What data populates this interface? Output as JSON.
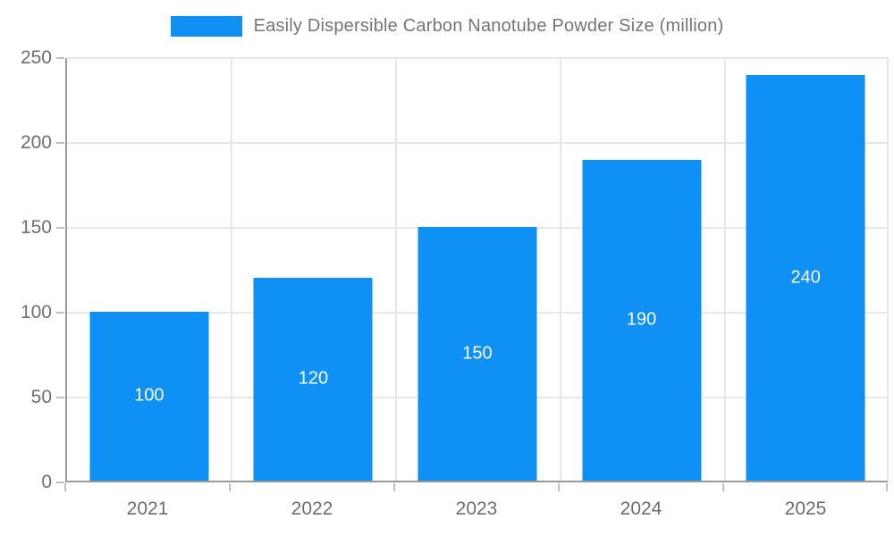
{
  "legend": {
    "label": "Easily Dispersible Carbon Nanotube Powder Size (million)"
  },
  "colors": {
    "bar": "#0E90F5",
    "axis_line": "#999999",
    "gridline": "#E7E7E7",
    "tick": "#BFBFBF",
    "axis_text": "#6E6E6E",
    "legend_text": "#757575",
    "bar_label_text": "#FFFFFF",
    "background": "#FFFFFF"
  },
  "chart_data": {
    "type": "bar",
    "title": "Easily Dispersible Carbon Nanotube Powder Size (million)",
    "categories": [
      "2021",
      "2022",
      "2023",
      "2024",
      "2025"
    ],
    "values": [
      100,
      120,
      150,
      190,
      240
    ],
    "xlabel": "",
    "ylabel": "",
    "ylim": [
      0,
      250
    ],
    "yticks": [
      250,
      200,
      150,
      100,
      50,
      0
    ],
    "grid": true,
    "legend_position": "top",
    "bar_value_labels": "inside-center"
  }
}
